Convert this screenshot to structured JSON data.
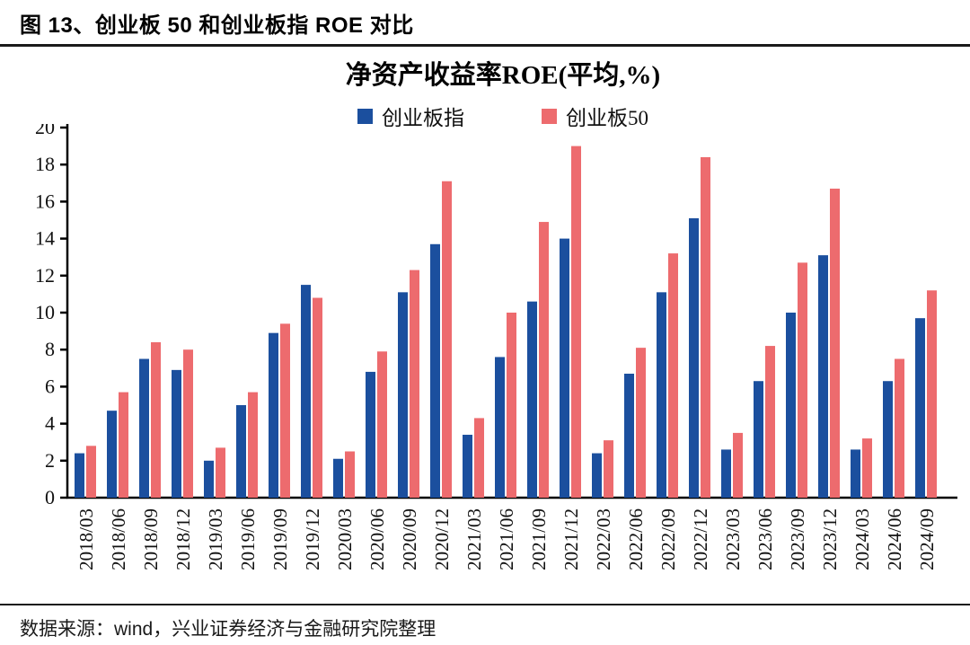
{
  "page_title": "图 13、创业板 50 和创业板指 ROE 对比",
  "source_note": "数据来源：wind，兴业证券经济与金融研究院整理",
  "chart_data": {
    "type": "bar",
    "title": "净资产收益率ROE(平均,%)",
    "categories": [
      "2018/03",
      "2018/06",
      "2018/09",
      "2018/12",
      "2019/03",
      "2019/06",
      "2019/09",
      "2019/12",
      "2020/03",
      "2020/06",
      "2020/09",
      "2020/12",
      "2021/03",
      "2021/06",
      "2021/09",
      "2021/12",
      "2022/03",
      "2022/06",
      "2022/09",
      "2022/12",
      "2023/03",
      "2023/06",
      "2023/09",
      "2023/12",
      "2024/03",
      "2024/06",
      "2024/09"
    ],
    "series": [
      {
        "name": "创业板指",
        "color": "#1B4F9E",
        "values": [
          2.4,
          4.7,
          7.5,
          6.9,
          2.0,
          5.0,
          8.9,
          11.5,
          2.1,
          6.8,
          11.1,
          13.7,
          3.4,
          7.6,
          10.6,
          14.0,
          2.4,
          6.7,
          11.1,
          15.1,
          2.6,
          6.3,
          10.0,
          13.1,
          2.6,
          6.3,
          9.7
        ]
      },
      {
        "name": "创业板50",
        "color": "#ED6B6E",
        "values": [
          2.8,
          5.7,
          8.4,
          8.0,
          2.7,
          5.7,
          9.4,
          10.8,
          2.5,
          7.9,
          12.3,
          17.1,
          4.3,
          10.0,
          14.9,
          19.0,
          3.1,
          8.1,
          13.2,
          18.4,
          3.5,
          8.2,
          12.7,
          16.7,
          3.2,
          7.5,
          11.2
        ]
      }
    ],
    "xlabel": "",
    "ylabel": "",
    "ylim": [
      0,
      20
    ],
    "ytick_step": 2,
    "grid": false,
    "legend_position": "top",
    "axis_color": "#000000"
  }
}
